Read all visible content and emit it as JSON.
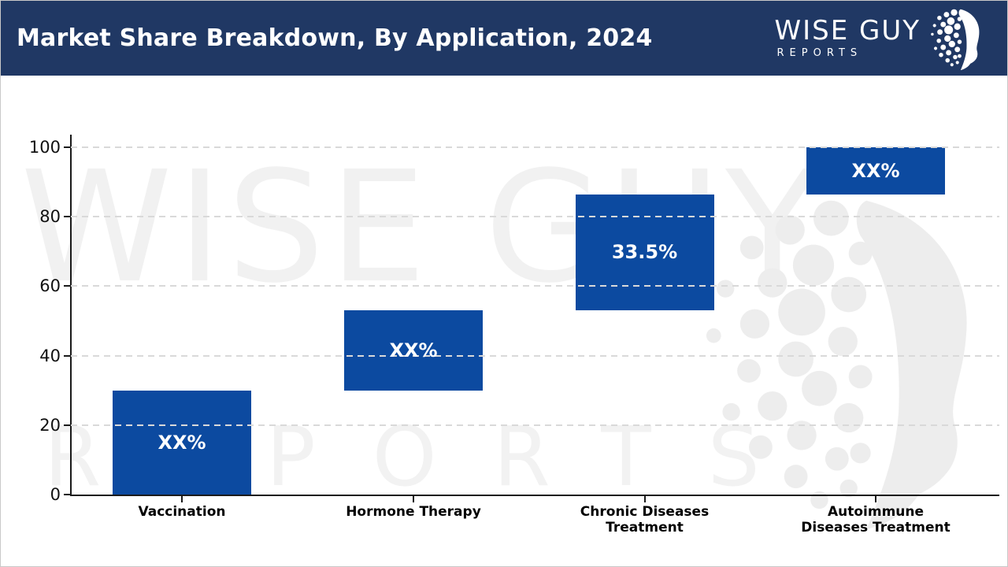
{
  "header": {
    "title": "Market Share Breakdown, By Application, 2024",
    "logo": {
      "name": "WISE GUY",
      "subtitle": "REPORTS"
    }
  },
  "watermark": {
    "name": "WISE GUY",
    "subtitle": "REPORTS"
  },
  "chart_data": {
    "type": "bar",
    "subtype": "floating-range-bars (waterfall style)",
    "title": "Market Share Breakdown, By Application, 2024",
    "categories": [
      "Vaccination",
      "Hormone Therapy",
      "Chronic Diseases Treatment",
      "Autoimmune Diseases Treatment"
    ],
    "category_label_lines": [
      [
        "Vaccination"
      ],
      [
        "Hormone Therapy"
      ],
      [
        "Chronic Diseases",
        "Treatment"
      ],
      [
        "Autoimmune",
        "Diseases Treatment"
      ]
    ],
    "bars": [
      {
        "category": "Vaccination",
        "start": 0,
        "end": 30,
        "label": "XX%"
      },
      {
        "category": "Hormone Therapy",
        "start": 30,
        "end": 53,
        "label": "XX%"
      },
      {
        "category": "Chronic Diseases Treatment",
        "start": 53,
        "end": 86.5,
        "label": "33.5%"
      },
      {
        "category": "Autoimmune Diseases Treatment",
        "start": 86.5,
        "end": 100,
        "label": "XX%"
      }
    ],
    "ylim": [
      0,
      100
    ],
    "yticks": [
      0,
      20,
      40,
      60,
      80,
      100
    ],
    "xlabel": "",
    "ylabel": "",
    "grid": "dashed-horizontal-over-bars",
    "legend": "none",
    "colors": {
      "bar": "#0c4aa0",
      "grid": "#d9d9d9",
      "axis": "#1a1a1a",
      "bar_label": "#ffffff",
      "header_bg": "#203864",
      "header_text": "#ffffff",
      "watermark": "#f1f1f1"
    }
  }
}
